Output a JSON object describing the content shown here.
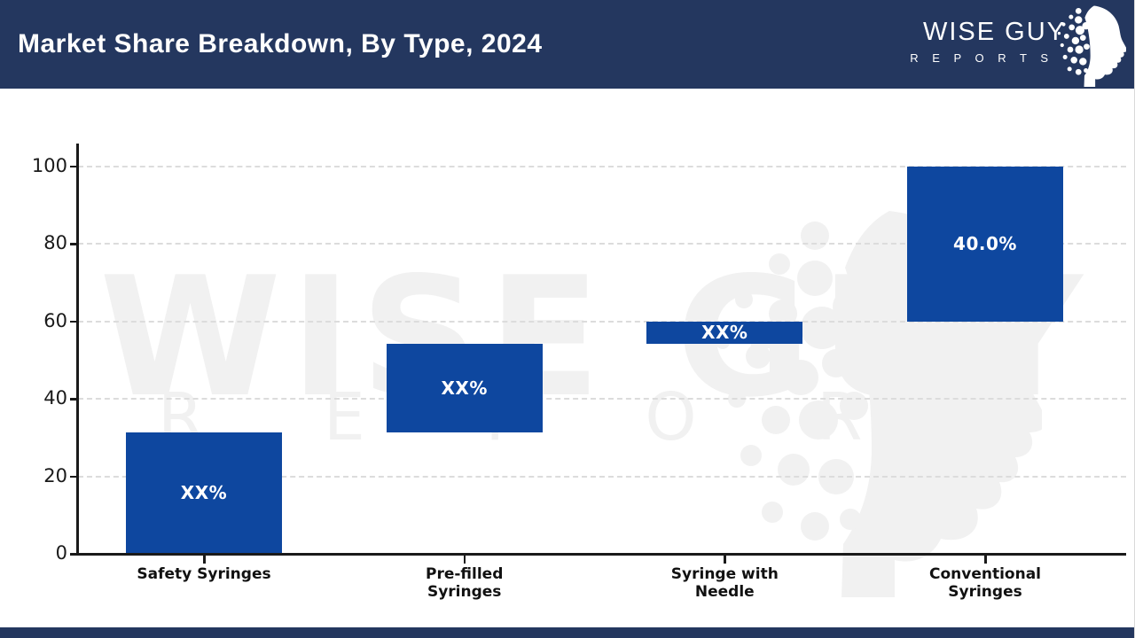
{
  "page": {
    "bg_color": "#FFFFFF",
    "edge_color": "#D9D9D9"
  },
  "header": {
    "title": "Market Share Breakdown, By Type, 2024",
    "bg_color": "#24375F",
    "text_color": "#FFFFFF",
    "logo": {
      "name": "WISE GUY",
      "subname": "R E P O R T S",
      "head_icon": "dotted-head-profile"
    }
  },
  "watermark": {
    "line1": "WISE GUY",
    "line2": "R E P O R T S",
    "color": "#F1F1F1",
    "head_icon": "dotted-head-profile"
  },
  "chart_data": {
    "type": "bar",
    "subtype": "floating-segment-waterfall",
    "title": "Market Share Breakdown, By Type, 2024",
    "categories": [
      "Safety Syringes",
      "Pre-filled Syringes",
      "Syringe with Needle",
      "Conventional Syringes"
    ],
    "segments": [
      {
        "category": "Safety Syringes",
        "lines": [
          "Safety Syringes"
        ],
        "start": 0,
        "end": 31.4,
        "label": "XX%"
      },
      {
        "category": "Pre-filled Syringes",
        "lines": [
          "Pre-filled",
          "Syringes"
        ],
        "start": 31.4,
        "end": 54.2,
        "label": "XX%"
      },
      {
        "category": "Syringe with Needle",
        "lines": [
          "Syringe with",
          "Needle"
        ],
        "start": 54.2,
        "end": 60,
        "label": "XX%"
      },
      {
        "category": "Conventional Syringes",
        "lines": [
          "Conventional",
          "Syringes"
        ],
        "start": 60,
        "end": 100,
        "label": "40.0%"
      }
    ],
    "yticks": [
      0,
      20,
      40,
      60,
      80,
      100
    ],
    "ylim": [
      0,
      100
    ],
    "xlabel": "",
    "ylabel": "",
    "legend": "none",
    "grid": "horizontal-dashed",
    "bar_color": "#0E479F",
    "bar_label_color": "#FFFFFF",
    "axis_color": "#1A1A1A",
    "gridline_color": "#DCDCDC"
  },
  "footer": {
    "bg_color": "#24375F"
  }
}
